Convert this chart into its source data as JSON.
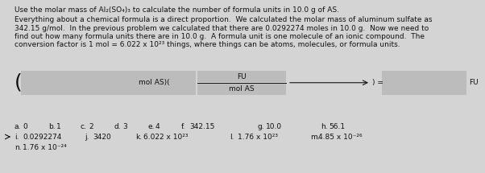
{
  "title_line": "Use the molar mass of Al₂(SO₄)₃ to calculate the number of formula units in 10.0 g of AS.",
  "body_lines": [
    "Everything about a chemical formula is a direct proportion.  We calculated the molar mass of aluminum sulfate as",
    "342.15 g/mol.  In the previous problem we calculated that there are 0.0292274 moles in 10.0 g.  Now we need to",
    "find out how many formula units there are in 10.0 g.  A formula unit is one molecule of an ionic compound.  The",
    "conversion factor is 1 mol = 6.022 x 10²³ things, where things can be atoms, molecules, or formula units."
  ],
  "bg_color": "#d4d4d4",
  "box_color": "#bcbcbc",
  "text_color": "#111111",
  "ans_row1_labels": [
    "a.",
    "b.",
    "c.",
    "d.",
    "e.",
    "f.",
    "g.",
    "h."
  ],
  "ans_row1_vals": [
    "0",
    "1",
    "2",
    "3",
    "4",
    "342.15",
    "10.0",
    "56.1"
  ],
  "ans_row2_labels": [
    "i.",
    "j.",
    "k.",
    "l.",
    "m."
  ],
  "ans_row2_vals": [
    "0.0292274",
    "3420",
    "6.022 x 10²³",
    "1.76 x 10²³",
    "4.85 x 10⁻²⁶"
  ],
  "ans_row3_labels": [
    "n."
  ],
  "ans_row3_vals": [
    "1.76 x 10⁻²⁴"
  ],
  "fraction_top": "FU",
  "fraction_bottom": "mol AS",
  "left_paren": "(",
  "mol_as_label": "mol AS)(",
  "arrow_end_label": ") =",
  "right_fu": "FU"
}
